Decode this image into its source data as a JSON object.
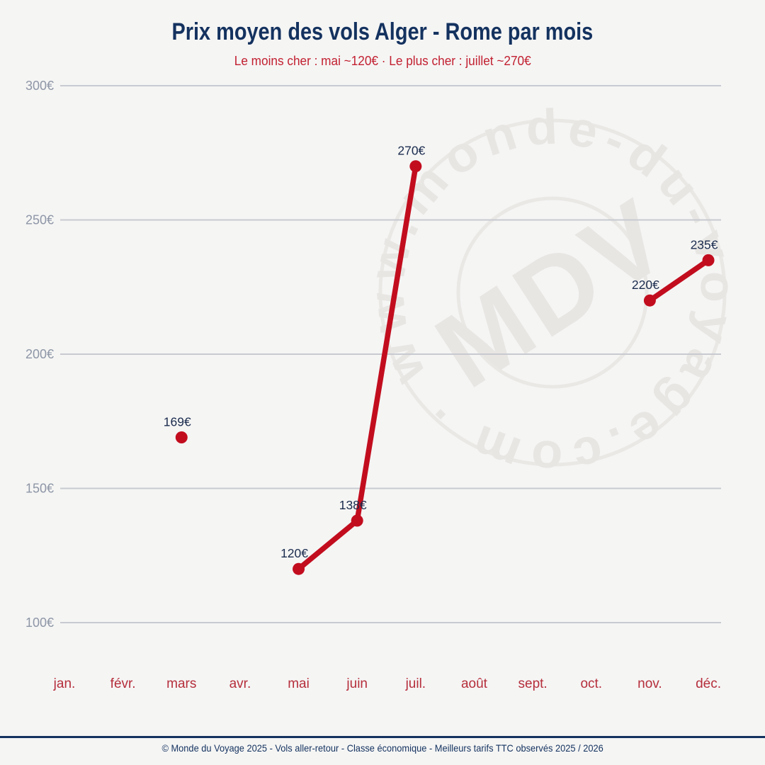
{
  "header": {
    "title": "Prix moyen des vols Alger - Rome par mois",
    "subtitle": "Le moins cher : mai ~120€ · Le plus cher : juillet ~270€"
  },
  "watermark": {
    "ring_text": "www.monde-du-voyage.com ·",
    "center_text": "MDV"
  },
  "footer": {
    "text": "© Monde du Voyage 2025 - Vols aller-retour - Classe économique - Meilleurs tarifs TTC observés 2025 / 2026"
  },
  "colors": {
    "background": "#f5f5f4",
    "title_navy": "#14325f",
    "subtitle_red": "#c22030",
    "series_red": "#c20d1e",
    "x_label_red": "#b52e3b",
    "y_label_gray": "#8e96a6",
    "gridline_gray": "#c7cad0",
    "point_label_navy": "#1a2b4d",
    "watermark_gray": "#e8e6e3"
  },
  "chart_data": {
    "type": "line",
    "title": "Prix moyen des vols Alger - Rome par mois",
    "subtitle": "Le moins cher : mai ~120€ · Le plus cher : juillet ~270€",
    "categories": [
      "jan.",
      "févr.",
      "mars",
      "avr.",
      "mai",
      "juin",
      "juil.",
      "août",
      "sept.",
      "oct.",
      "nov.",
      "déc."
    ],
    "values": [
      null,
      null,
      169,
      null,
      120,
      138,
      270,
      null,
      null,
      null,
      220,
      235
    ],
    "unit": "€",
    "xlabel": "",
    "ylabel": "",
    "ylim": [
      100,
      300
    ],
    "yticks": [
      100,
      150,
      200,
      250,
      300
    ],
    "grid": true,
    "legend": false,
    "point_labels": [
      "",
      "",
      "169€",
      "",
      "120€",
      "138€",
      "270€",
      "",
      "",
      "",
      "220€",
      "235€"
    ],
    "cheapest": {
      "month": "mai",
      "price": "~120€"
    },
    "most_expensive": {
      "month": "juillet",
      "price": "~270€"
    }
  }
}
